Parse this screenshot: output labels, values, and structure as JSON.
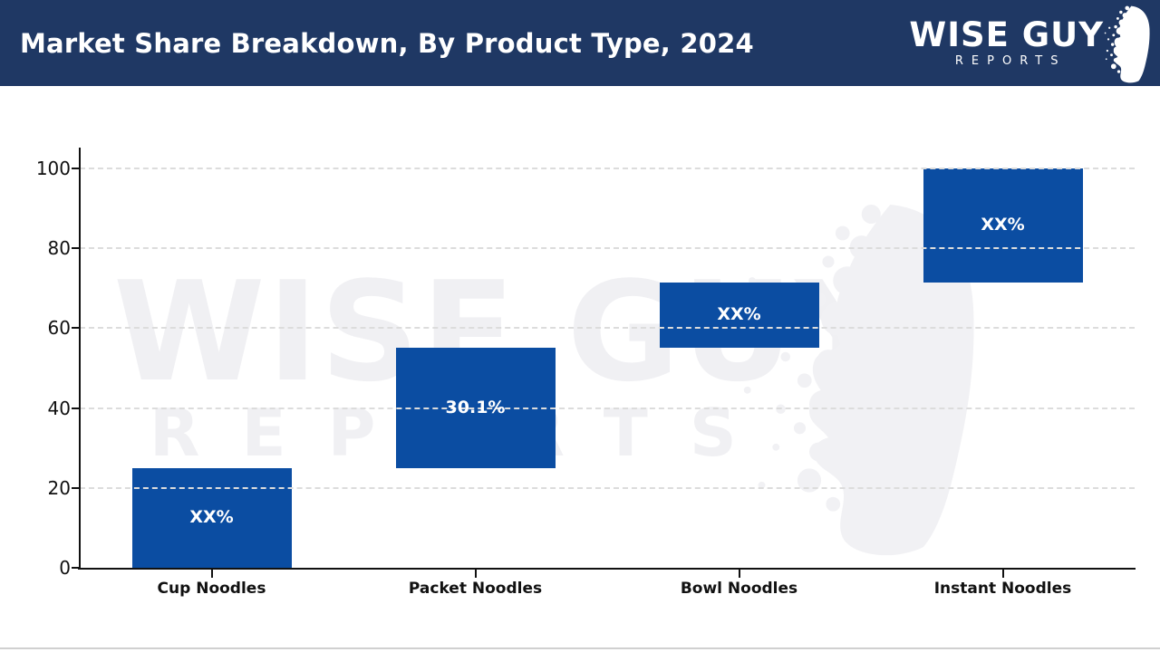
{
  "header": {
    "title": "Market Share Breakdown, By Product Type, 2024",
    "logo_line1": "WISE GUY",
    "logo_line2": "REPORTS"
  },
  "watermark": {
    "line1": "WISE GUY",
    "line2": "REPORTS"
  },
  "chart_data": {
    "type": "bar",
    "subtype": "waterfall",
    "title": "Market Share Breakdown, By Product Type, 2024",
    "categories": [
      "Cup Noodles",
      "Packet Noodles",
      "Bowl Noodles",
      "Instant Noodles"
    ],
    "bars": [
      {
        "category": "Cup Noodles",
        "start": 0,
        "end": 24.9,
        "label": "XX%"
      },
      {
        "category": "Packet Noodles",
        "start": 24.9,
        "end": 55.0,
        "label": "30.1%"
      },
      {
        "category": "Bowl Noodles",
        "start": 55.0,
        "end": 71.4,
        "label": "XX%"
      },
      {
        "category": "Instant Noodles",
        "start": 71.4,
        "end": 100,
        "label": "XX%"
      }
    ],
    "xlabel": "",
    "ylabel": "",
    "ylim": [
      0,
      100
    ],
    "yticks": [
      0,
      20,
      40,
      60,
      80,
      100
    ],
    "grid": true,
    "legend": false,
    "bar_color": "#0b4da2",
    "bar_label_color": "#ffffff",
    "grid_color": "#dcdcdc",
    "axis_color": "#111111",
    "header_color": "#1f3864"
  }
}
